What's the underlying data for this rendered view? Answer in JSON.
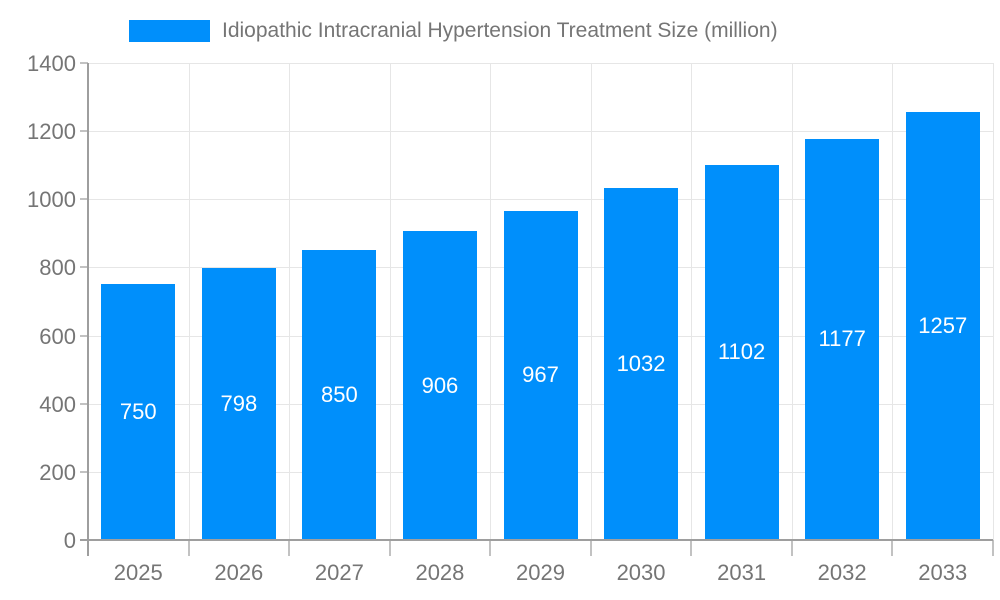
{
  "legend": {
    "label": "Idiopathic Intracranial Hypertension Treatment Size (million)",
    "swatch_color": "#008FFB"
  },
  "chart_data": {
    "type": "bar",
    "title": "Idiopathic Intracranial Hypertension Treatment Size (million)",
    "categories": [
      "2025",
      "2026",
      "2027",
      "2028",
      "2029",
      "2030",
      "2031",
      "2032",
      "2033"
    ],
    "values": [
      750,
      798,
      850,
      906,
      967,
      1032,
      1102,
      1177,
      1257
    ],
    "xlabel": "",
    "ylabel": "",
    "ylim": [
      0,
      1400
    ],
    "yticks": [
      0,
      200,
      400,
      600,
      800,
      1000,
      1200,
      1400
    ],
    "grid": true,
    "legend_position": "top",
    "bar_color": "#008FFB",
    "value_label_color": "#ffffff",
    "axis_label_color": "#757575",
    "grid_color": "#e6e6e6",
    "axis_line_color": "#9e9e9e",
    "tick_color": "#c2c2c2",
    "background": "#ffffff"
  }
}
